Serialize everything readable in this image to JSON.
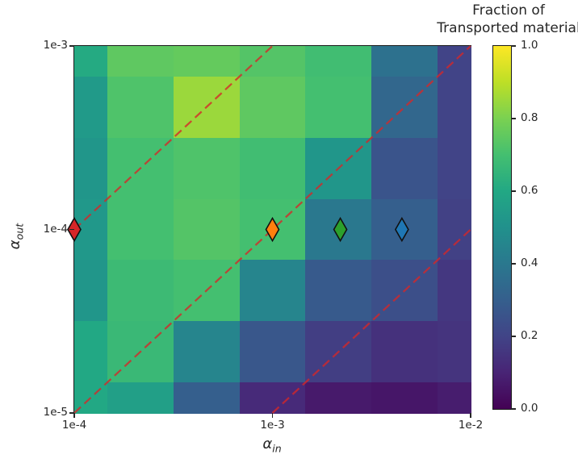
{
  "title": {
    "line1": "Fraction of",
    "line2": "Transported material"
  },
  "axes": {
    "xlabel": {
      "base": "α",
      "sub": "in"
    },
    "ylabel": {
      "base": "α",
      "sub": "out"
    },
    "x_scale": "log",
    "y_scale": "log",
    "xlim": [
      0.0001,
      0.01
    ],
    "ylim": [
      1e-05,
      0.001
    ],
    "xticks": [
      {
        "label": "1e-4",
        "value": 0.0001
      },
      {
        "label": "1e-3",
        "value": 0.001
      },
      {
        "label": "1e-2",
        "value": 0.01
      }
    ],
    "yticks": [
      {
        "label": "1e-3",
        "value": 0.001
      },
      {
        "label": "1e-4",
        "value": 0.0001
      },
      {
        "label": "1e-5",
        "value": 1e-05
      }
    ]
  },
  "colorbar": {
    "label": "Fraction of Transported material",
    "min": 0.0,
    "max": 1.0,
    "ticks": [
      {
        "label": "1.0",
        "value": 1.0
      },
      {
        "label": "0.8",
        "value": 0.8
      },
      {
        "label": "0.6",
        "value": 0.6
      },
      {
        "label": "0.4",
        "value": 0.4
      },
      {
        "label": "0.2",
        "value": 0.2
      },
      {
        "label": "0.0",
        "value": 0.0
      }
    ]
  },
  "chart_data": {
    "type": "heatmap",
    "colormap": "viridis",
    "vmin": 0.0,
    "vmax": 1.0,
    "x": [
      0.0001,
      0.000215,
      0.000464,
      0.001,
      0.00215,
      0.00464,
      0.01
    ],
    "y": [
      0.001,
      0.000464,
      0.000215,
      0.0001,
      4.64e-05,
      2.15e-05,
      1e-05
    ],
    "values": [
      [
        0.61,
        0.75,
        0.76,
        0.73,
        0.69,
        0.37,
        0.2
      ],
      [
        0.54,
        0.72,
        0.85,
        0.75,
        0.7,
        0.33,
        0.2
      ],
      [
        0.52,
        0.7,
        0.72,
        0.69,
        0.52,
        0.26,
        0.2
      ],
      [
        0.53,
        0.7,
        0.73,
        0.7,
        0.4,
        0.3,
        0.19
      ],
      [
        0.52,
        0.68,
        0.7,
        0.45,
        0.28,
        0.24,
        0.16
      ],
      [
        0.6,
        0.67,
        0.45,
        0.27,
        0.18,
        0.14,
        0.15
      ],
      [
        0.6,
        0.56,
        0.3,
        0.12,
        0.07,
        0.06,
        0.08
      ]
    ],
    "diagonal_lines": [
      {
        "ratio": 1.0,
        "style": "dashed",
        "color": "#d62728"
      },
      {
        "ratio": 0.1,
        "style": "dashed",
        "color": "#d62728"
      },
      {
        "ratio": 0.01,
        "style": "dashed",
        "color": "#d62728"
      }
    ],
    "markers": [
      {
        "shape": "diamond",
        "color": "#d62728",
        "name": "red",
        "alpha_in": 0.0001,
        "alpha_out": 0.0001
      },
      {
        "shape": "diamond",
        "color": "#ff7f0e",
        "name": "orange",
        "alpha_in": 0.001,
        "alpha_out": 0.0001
      },
      {
        "shape": "diamond",
        "color": "#2ca02c",
        "name": "green",
        "alpha_in": 0.0022,
        "alpha_out": 0.0001
      },
      {
        "shape": "diamond",
        "color": "#1f77b4",
        "name": "blue",
        "alpha_in": 0.0045,
        "alpha_out": 0.0001
      }
    ]
  }
}
